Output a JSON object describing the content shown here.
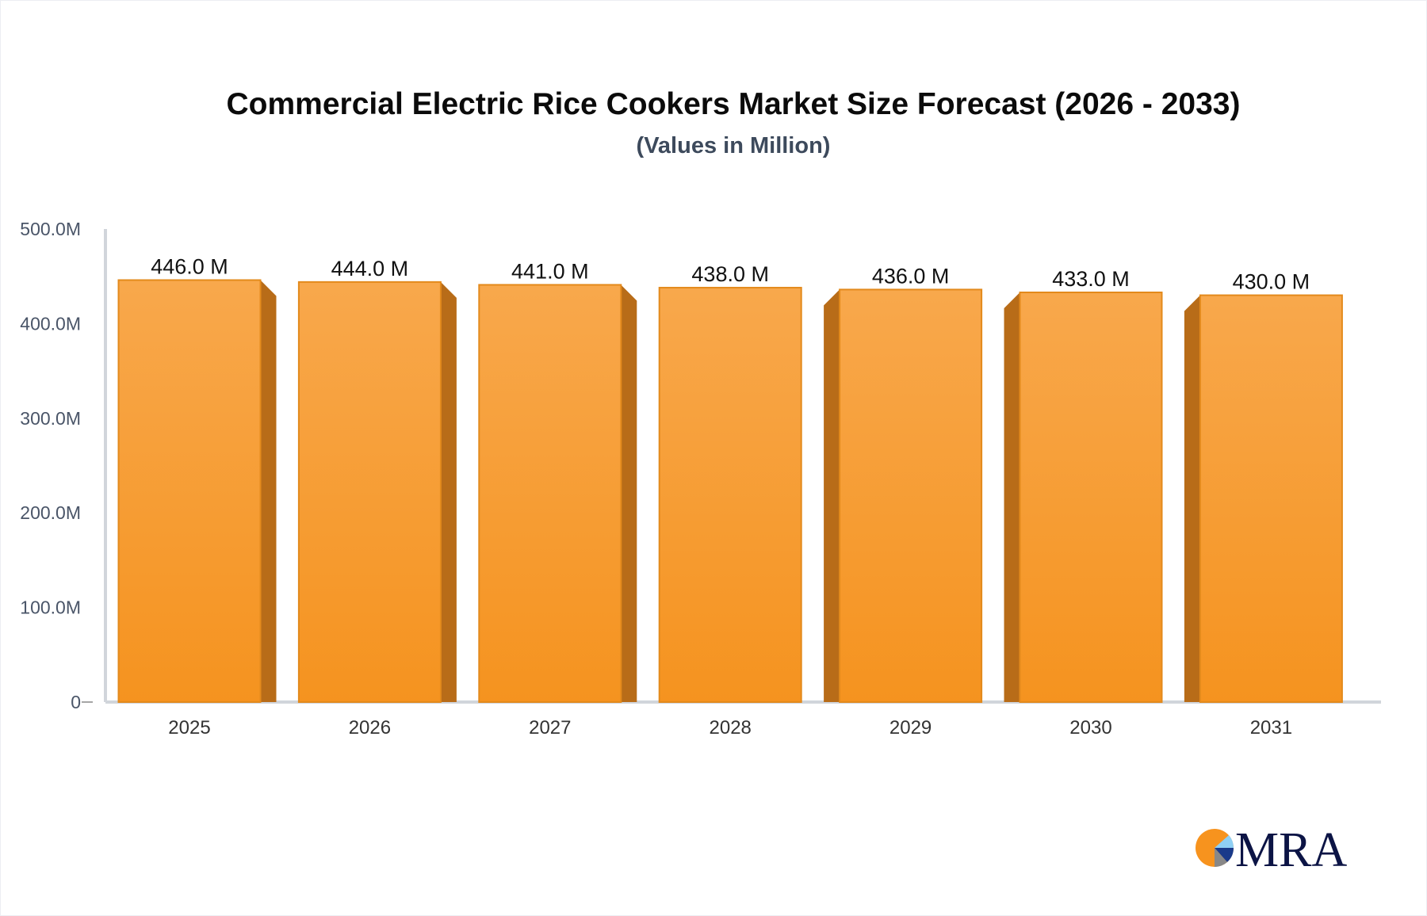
{
  "chart_data": {
    "type": "bar",
    "title": "Commercial Electric Rice Cookers Market Size Forecast (2026 - 2033)",
    "subtitle": "(Values in Million)",
    "categories": [
      "2025",
      "2026",
      "2027",
      "2028",
      "2029",
      "2030",
      "2031"
    ],
    "values": [
      446.0,
      444.0,
      441.0,
      438.0,
      436.0,
      433.0,
      430.0
    ],
    "data_labels": [
      "446.0 M",
      "444.0 M",
      "441.0 M",
      "438.0 M",
      "436.0 M",
      "433.0 M",
      "430.0 M"
    ],
    "ylim": [
      0,
      500
    ],
    "yticks": [
      0,
      100,
      200,
      300,
      400,
      500
    ],
    "ytick_labels": [
      "0",
      "100.0M",
      "200.0M",
      "300.0M",
      "400.0M",
      "500.0M"
    ],
    "xlabel": "",
    "ylabel": "",
    "grid": false,
    "colors": {
      "bar_top": "#f8a84c",
      "bar_bottom": "#f5931f",
      "bar_side": "#b86c18",
      "axis": "#d1d5db"
    }
  },
  "logo": {
    "text": "MRA",
    "colors": [
      "#f7931e",
      "#8fd0f5",
      "#1a3a8a",
      "#888888",
      "#0c1445"
    ]
  }
}
